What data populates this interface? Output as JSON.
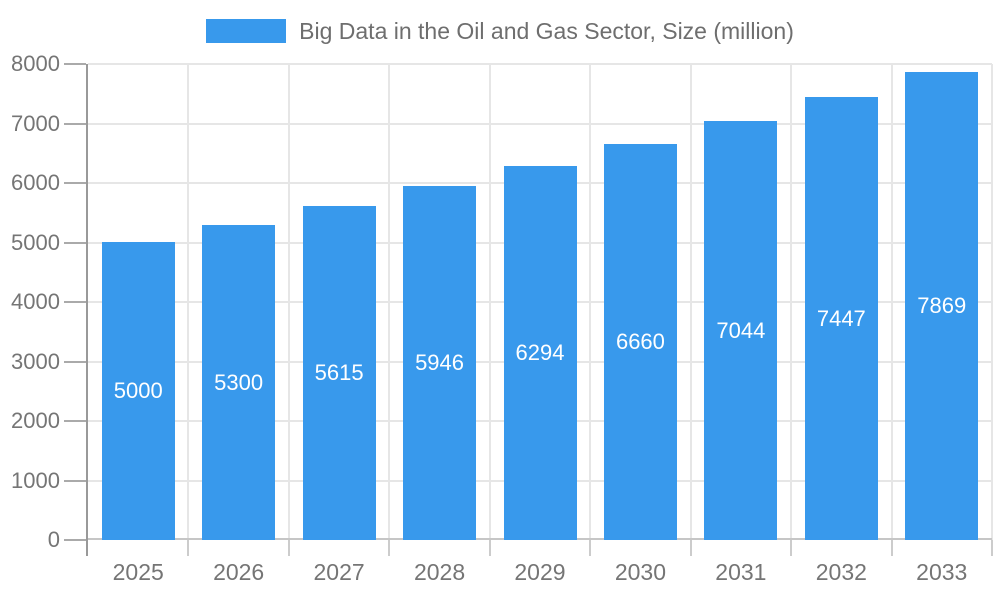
{
  "chart_data": {
    "type": "bar",
    "title": "Big Data in the Oil and Gas Sector, Size (million)",
    "categories": [
      "2025",
      "2026",
      "2027",
      "2028",
      "2029",
      "2030",
      "2031",
      "2032",
      "2033"
    ],
    "values": [
      5000,
      5300,
      5615,
      5946,
      6294,
      6660,
      7044,
      7447,
      7869
    ],
    "series": [
      {
        "name": "Big Data in the Oil and Gas Sector, Size (million)",
        "values": [
          5000,
          5300,
          5615,
          5946,
          6294,
          6660,
          7044,
          7447,
          7869
        ]
      }
    ],
    "xlabel": "",
    "ylabel": "",
    "ylim": [
      0,
      8000
    ],
    "yticks": [
      0,
      1000,
      2000,
      3000,
      4000,
      5000,
      6000,
      7000,
      8000
    ],
    "grid": true,
    "legend_position": "top",
    "bar_labels_inside": true,
    "colors": {
      "bar": "#3899ec",
      "bar_label": "#ffffff",
      "grid": "#e6e6e6",
      "axis_line": "#999999",
      "baseline": "#c6c6c6",
      "y_tick": "#aaaaaa",
      "x_tick": "#cccccc",
      "axis_text": "#757575",
      "legend_text": "#6e6e6e",
      "background": "#ffffff"
    }
  }
}
